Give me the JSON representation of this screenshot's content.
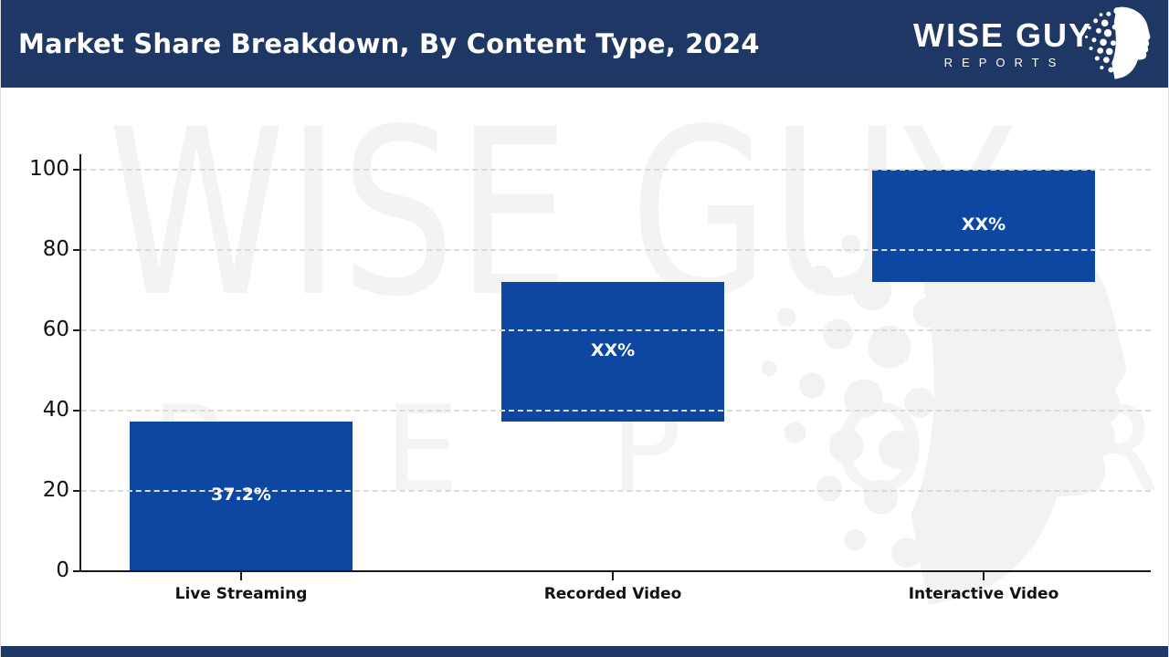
{
  "header": {
    "title": "Market Share Breakdown, By Content Type, 2024",
    "logo": {
      "wordmark": "WISE GUY",
      "subtext": "REPORTS"
    }
  },
  "watermark": {
    "wordmark": "WISE GUY",
    "subtext": "R E P O R T S"
  },
  "chart_data": {
    "type": "bar",
    "subtype": "waterfall",
    "title": "Market Share Breakdown, By Content Type, 2024",
    "categories": [
      "Live Streaming",
      "Recorded Video",
      "Interactive Video"
    ],
    "series": [
      {
        "name": "Market Share",
        "segments": [
          {
            "category": "Live Streaming",
            "start": 0,
            "end": 37.2,
            "label": "37.2%"
          },
          {
            "category": "Recorded Video",
            "start": 37.2,
            "end": 72,
            "label": "XX%"
          },
          {
            "category": "Interactive Video",
            "start": 72,
            "end": 100,
            "label": "XX%"
          }
        ]
      }
    ],
    "xlabel": "",
    "ylabel": "",
    "ylim": [
      0,
      100
    ],
    "yticks": [
      0,
      20,
      40,
      60,
      80,
      100
    ],
    "grid": "horizontal-dashed-over-bars",
    "legend": "none"
  },
  "colors": {
    "header_bg": "#1f3765",
    "footer_bg": "#1f3765",
    "bar": "#0d47a1",
    "bar_label": "#ffffff",
    "grid": "#dbdbdb",
    "axis": "#1a1a1a",
    "watermark": "#f3f3f3"
  }
}
